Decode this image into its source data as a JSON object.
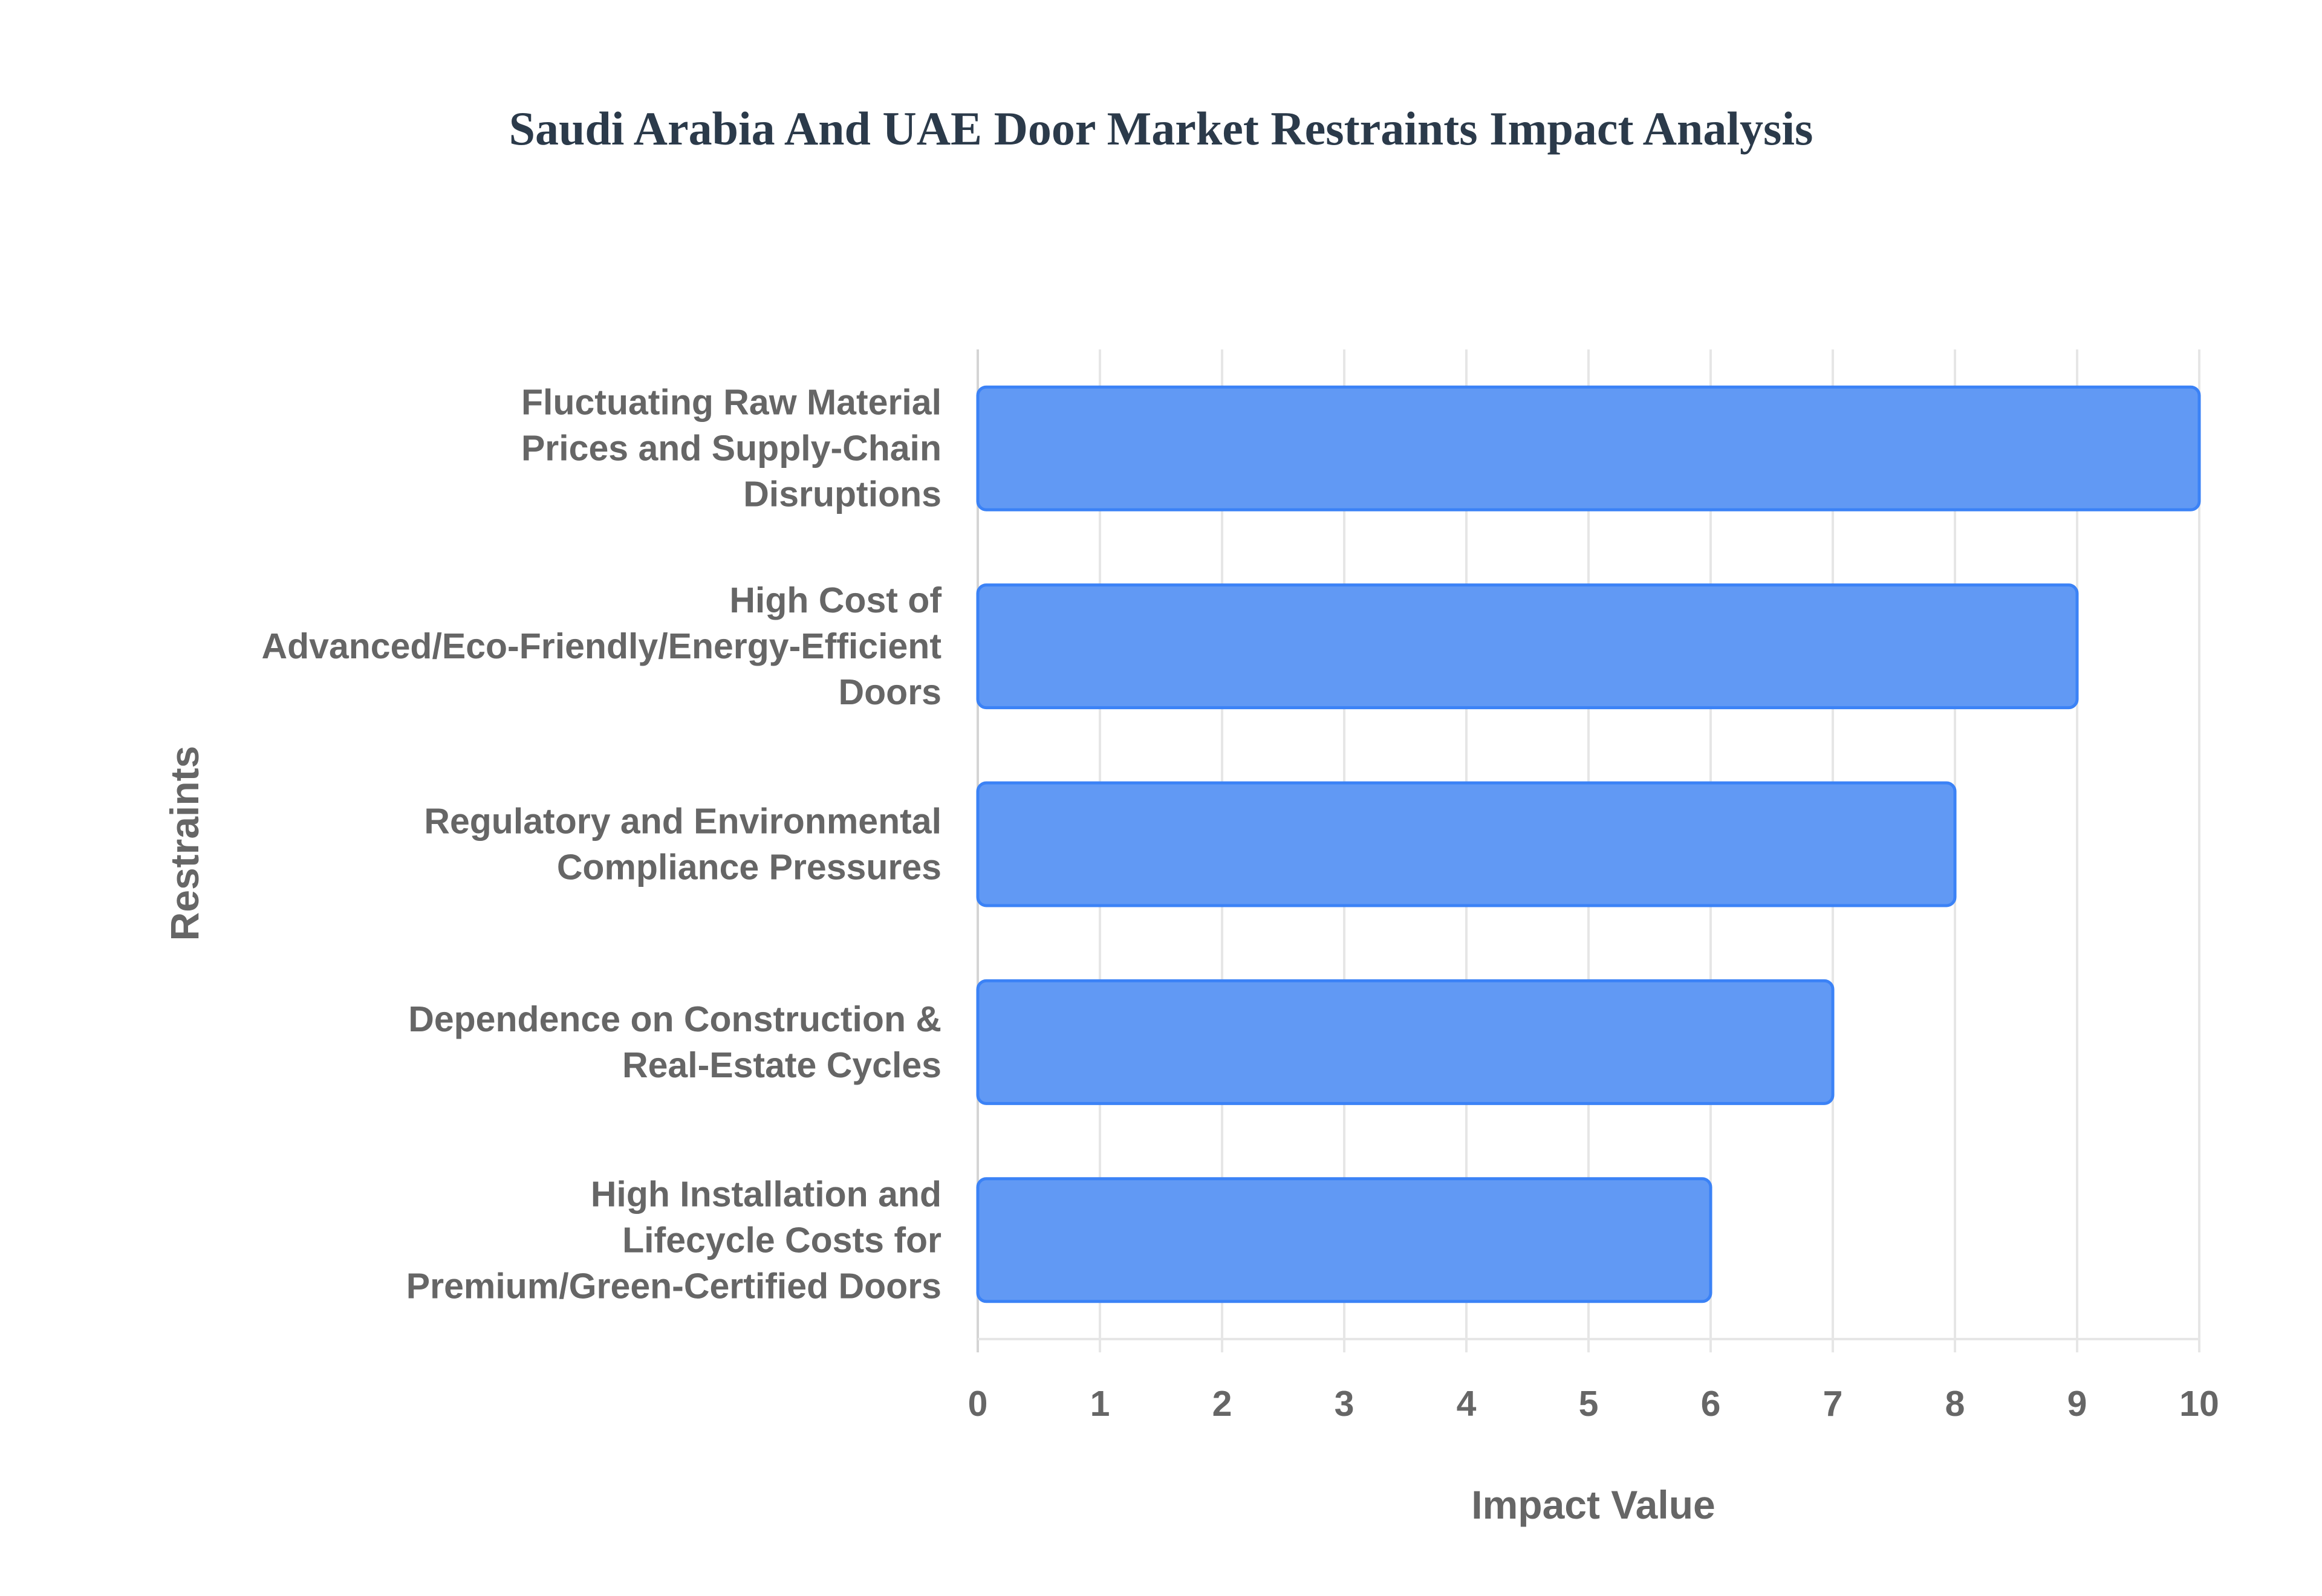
{
  "chart_data": {
    "type": "bar",
    "orientation": "horizontal",
    "title": "Saudi Arabia And UAE Door Market Restraints Impact Analysis",
    "xlabel": "Impact Value",
    "ylabel": "Restraints",
    "xlim": [
      0,
      10
    ],
    "xticks": [
      "0",
      "1",
      "2",
      "3",
      "4",
      "5",
      "6",
      "7",
      "8",
      "9",
      "10"
    ],
    "grid": true,
    "legend": "none",
    "bar_color": "#6199f4",
    "bar_border_color": "#3b82f6",
    "categories": [
      [
        "Fluctuating Raw Material",
        "Prices and Supply-Chain",
        "Disruptions"
      ],
      [
        "High Cost of",
        "Advanced/Eco-Friendly/Energy-Efficient",
        "Doors"
      ],
      [
        "Regulatory and Environmental",
        "Compliance Pressures"
      ],
      [
        "Dependence on Construction &",
        "Real-Estate Cycles"
      ],
      [
        "High Installation and",
        "Lifecycle Costs for",
        "Premium/Green-Certified Doors"
      ]
    ],
    "values": [
      10,
      9,
      8,
      7,
      6
    ]
  }
}
